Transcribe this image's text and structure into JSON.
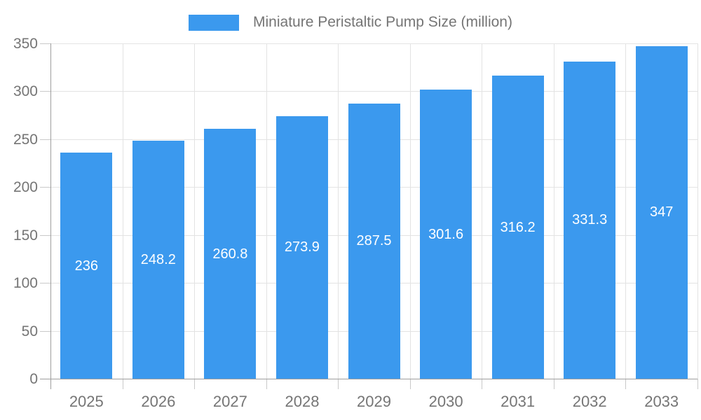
{
  "legend": {
    "label": "Miniature Peristaltic Pump Size (million)"
  },
  "chart_data": {
    "type": "bar",
    "title": "",
    "xlabel": "",
    "ylabel": "",
    "categories": [
      "2025",
      "2026",
      "2027",
      "2028",
      "2029",
      "2030",
      "2031",
      "2032",
      "2033"
    ],
    "values": [
      236,
      248.2,
      260.8,
      273.9,
      287.5,
      301.6,
      316.2,
      331.3,
      347
    ],
    "value_labels": [
      "236",
      "248.2",
      "260.8",
      "273.9",
      "287.5",
      "301.6",
      "316.2",
      "331.3",
      "347"
    ],
    "series_name": "Miniature Peristaltic Pump Size (million)",
    "ylim": [
      0,
      350
    ],
    "yticks": [
      0,
      50,
      100,
      150,
      200,
      250,
      300,
      350
    ],
    "grid": true,
    "legend_position": "top-center",
    "colors": {
      "bar": "#3B99EE",
      "bar_label": "#ffffff",
      "grid": "#e3e3e3",
      "axis": "#9e9e9e",
      "tick": "#c9c9c9",
      "text": "#757575"
    }
  }
}
